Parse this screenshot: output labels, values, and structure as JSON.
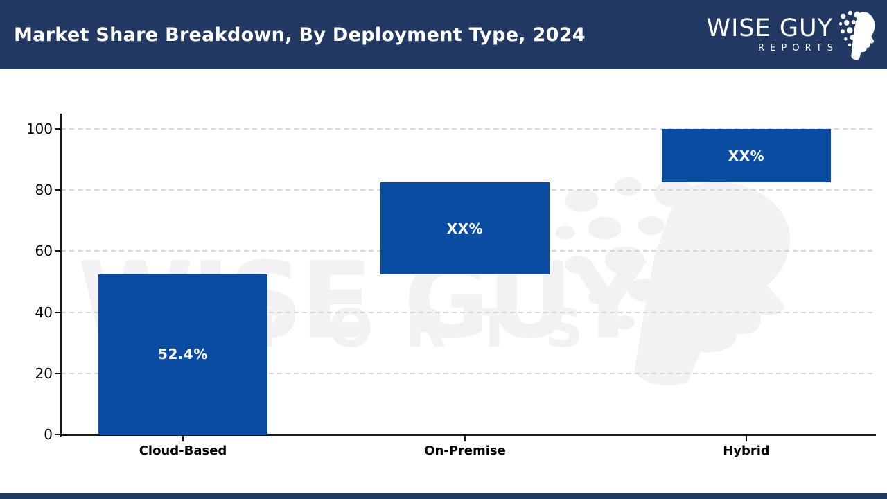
{
  "header": {
    "title": "Market Share Breakdown, By Deployment Type, 2024",
    "logo": {
      "name": "WISE GUY",
      "sub": "REPORTS"
    }
  },
  "watermark": {
    "line1": "WISE GUY",
    "line2": "REPORTS"
  },
  "colors": {
    "header_bg": "#213863",
    "bar": "#0b4ca3",
    "grid": "#d6d6d6",
    "axis": "#1a1a1a",
    "bar_label": "#ffffff",
    "watermark": "#f2f2f4"
  },
  "chart_data": {
    "type": "bar",
    "subtype": "floating-waterfall",
    "title": "Market Share Breakdown, By Deployment Type, 2024",
    "categories": [
      "Cloud-Based",
      "On-Premise",
      "Hybrid"
    ],
    "bars": [
      {
        "category": "Cloud-Based",
        "start": 0,
        "end": 52.4,
        "label": "52.4%"
      },
      {
        "category": "On-Premise",
        "start": 52.4,
        "end": 82.5,
        "label": "XX%"
      },
      {
        "category": "Hybrid",
        "start": 82.5,
        "end": 100,
        "label": "XX%"
      }
    ],
    "ylim": [
      0,
      100
    ],
    "yticks": [
      0,
      20,
      40,
      60,
      80,
      100
    ],
    "xlabel": "",
    "ylabel": "",
    "grid": "horizontal-dashed",
    "legend": false
  }
}
